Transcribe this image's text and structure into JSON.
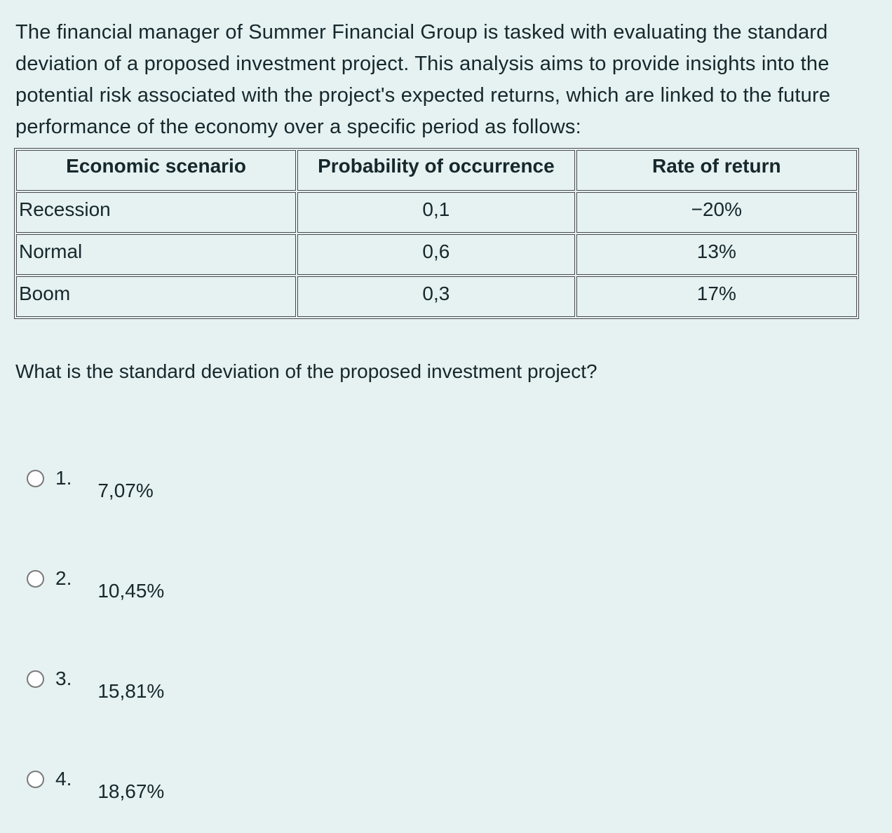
{
  "page": {
    "background_color": "#e6f1f1",
    "text_color": "#16282c"
  },
  "intro_text": "The financial manager of Summer Financial Group is tasked with evaluating the standard deviation of a proposed investment project. This analysis aims to provide insights into the potential risk associated with the project's expected returns, which are linked to the future performance of the economy over a specific period as follows:",
  "table": {
    "headers": {
      "scenario": "Economic scenario",
      "probability": "Probability of occurrence",
      "rate": "Rate of return"
    },
    "rows": [
      {
        "scenario": "Recession",
        "probability": "0,1",
        "rate": "−20%"
      },
      {
        "scenario": "Normal",
        "probability": "0,6",
        "rate": "13%"
      },
      {
        "scenario": "Boom",
        "probability": "0,3",
        "rate": "17%"
      }
    ]
  },
  "question_text": "What is the standard deviation of the proposed investment project?",
  "options": [
    {
      "number": "1.",
      "value": "7,07%"
    },
    {
      "number": "2.",
      "value": "10,45%"
    },
    {
      "number": "3.",
      "value": "15,81%"
    },
    {
      "number": "4.",
      "value": "18,67%"
    }
  ]
}
